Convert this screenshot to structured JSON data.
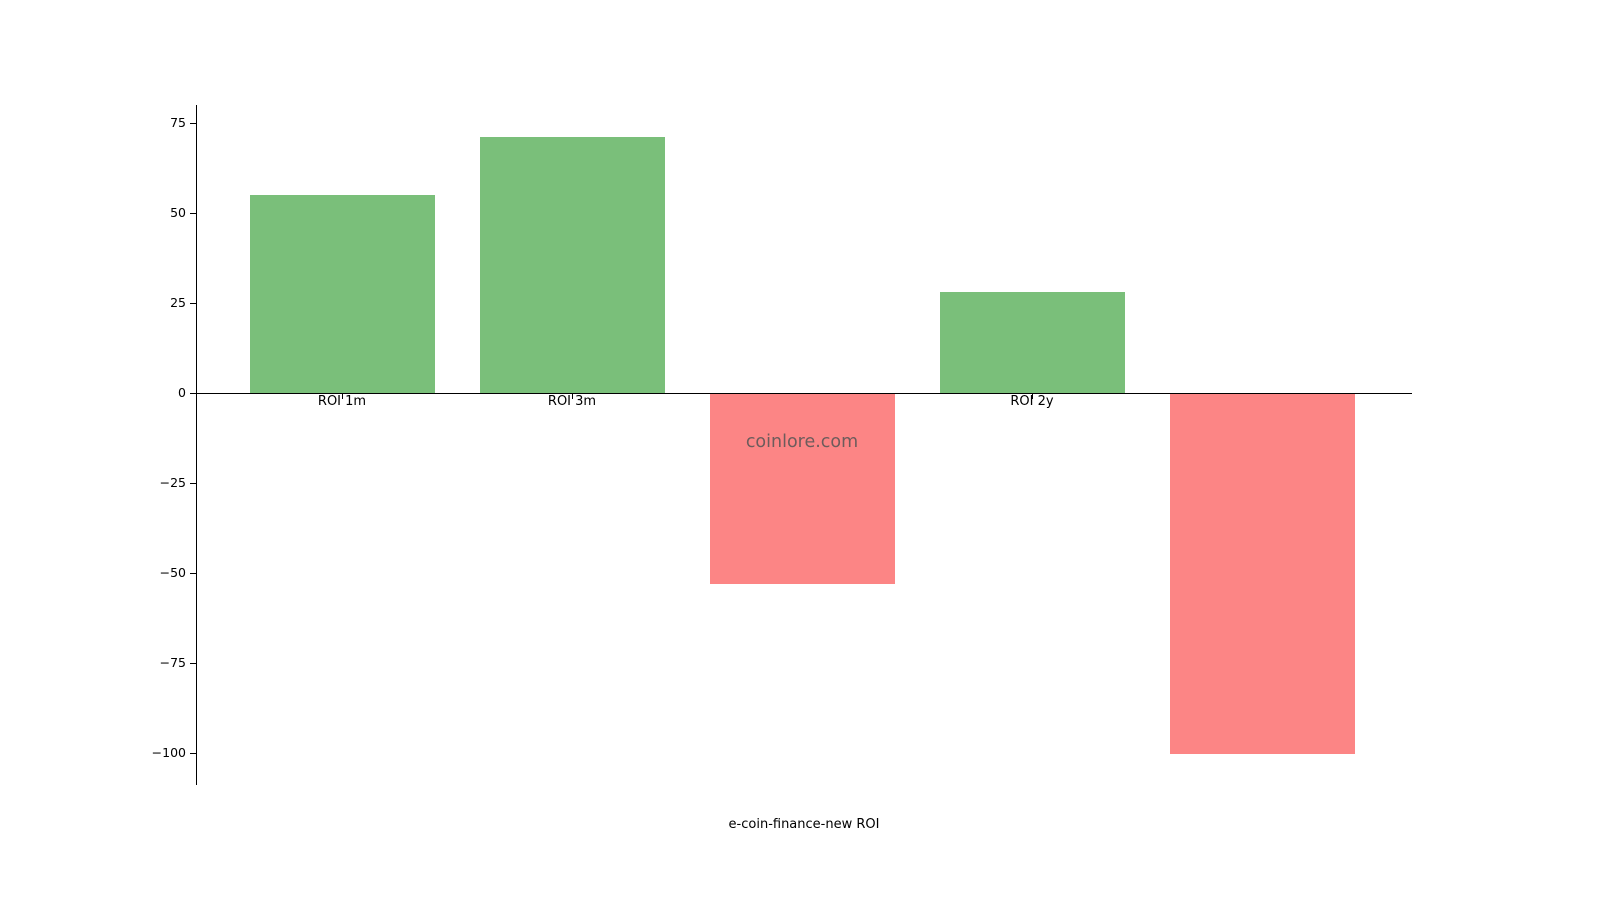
{
  "chart_data": {
    "type": "bar",
    "title": "e-coin-finance-new ROI",
    "categories": [
      "ROI 1m",
      "ROI 3m",
      "",
      "ROI 2y",
      ""
    ],
    "values": [
      55,
      71,
      -52.8,
      28,
      -100
    ],
    "bar_colors": [
      "#7abf7a",
      "#7abf7a",
      "#fc8585",
      "#7abf7a",
      "#fc8585"
    ],
    "positive_color": "#7abf7a",
    "negative_color": "#fc8585",
    "y_tick_values": [
      75,
      50,
      25,
      0,
      -25,
      -50,
      -75,
      -100
    ],
    "y_tick_labels": [
      "75",
      "50",
      "25",
      "0",
      "−25",
      "−50",
      "−75",
      "−100"
    ],
    "ylim": [
      -108.5,
      80
    ],
    "xlabel": "",
    "ylabel": "",
    "grid": false,
    "legend": false,
    "watermark": "coinlore.com",
    "watermark_color": "#555555"
  }
}
